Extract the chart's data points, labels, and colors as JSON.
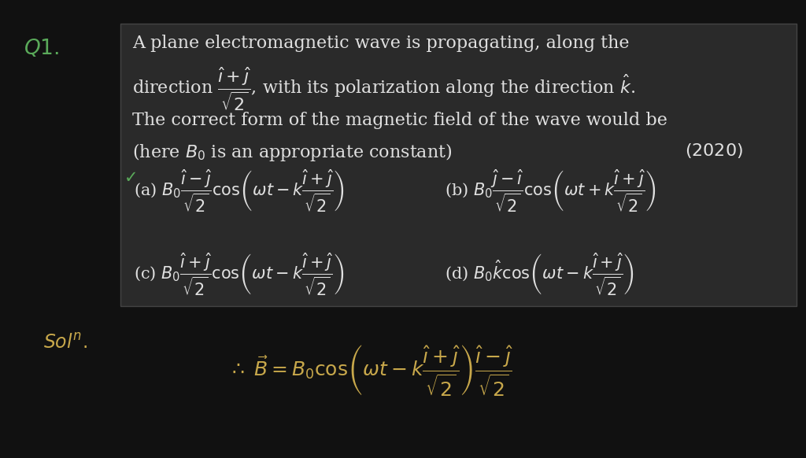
{
  "bg_color": "#111111",
  "box_color": "#2a2a2a",
  "text_color": "#e0e0e0",
  "yellow_color": "#c8a84b",
  "green_color": "#5aaa5a",
  "figsize": [
    10.24,
    5.82
  ],
  "dpi": 100
}
